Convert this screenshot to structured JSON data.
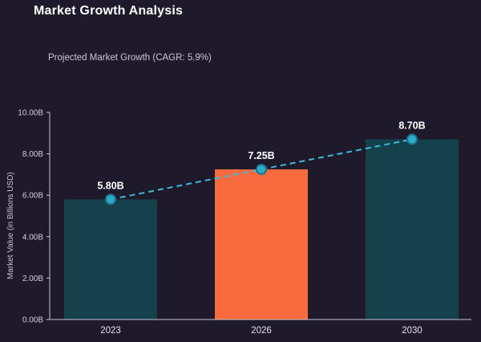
{
  "chart_data": {
    "type": "bar",
    "title": "Market Growth Analysis",
    "subtitle": "Projected Market Growth (CAGR: 5.9%)",
    "categories": [
      "2023",
      "2026",
      "2030"
    ],
    "values": [
      5.8,
      7.25,
      8.7
    ],
    "data_labels": [
      "5.80B",
      "7.25B",
      "8.70B"
    ],
    "xlabel": "",
    "ylabel": "Market Value (in Billions USD)",
    "ylim": [
      0,
      10
    ],
    "y_ticks": [
      0,
      2,
      4,
      6,
      8,
      10
    ],
    "y_tick_labels": [
      "0.00B",
      "2.00B",
      "4.00B",
      "6.00B",
      "8.00B",
      "10.00B"
    ],
    "grid": false,
    "legend": "none",
    "overlays": {
      "trend_line": "dashed line with circular markers over bar tops"
    },
    "colors": {
      "background": "#1e1a2b",
      "bar_colors": [
        "#15414d",
        "#f96b3f",
        "#15414d"
      ],
      "line": "#3fb9d8",
      "marker": "#2aaccb",
      "marker_ring": "#18768f",
      "axis": "#c8c8d0",
      "tick_text": "#d2cfdd",
      "x_tick_text": "#e2e0ea",
      "value_label": "#ffffff"
    }
  }
}
